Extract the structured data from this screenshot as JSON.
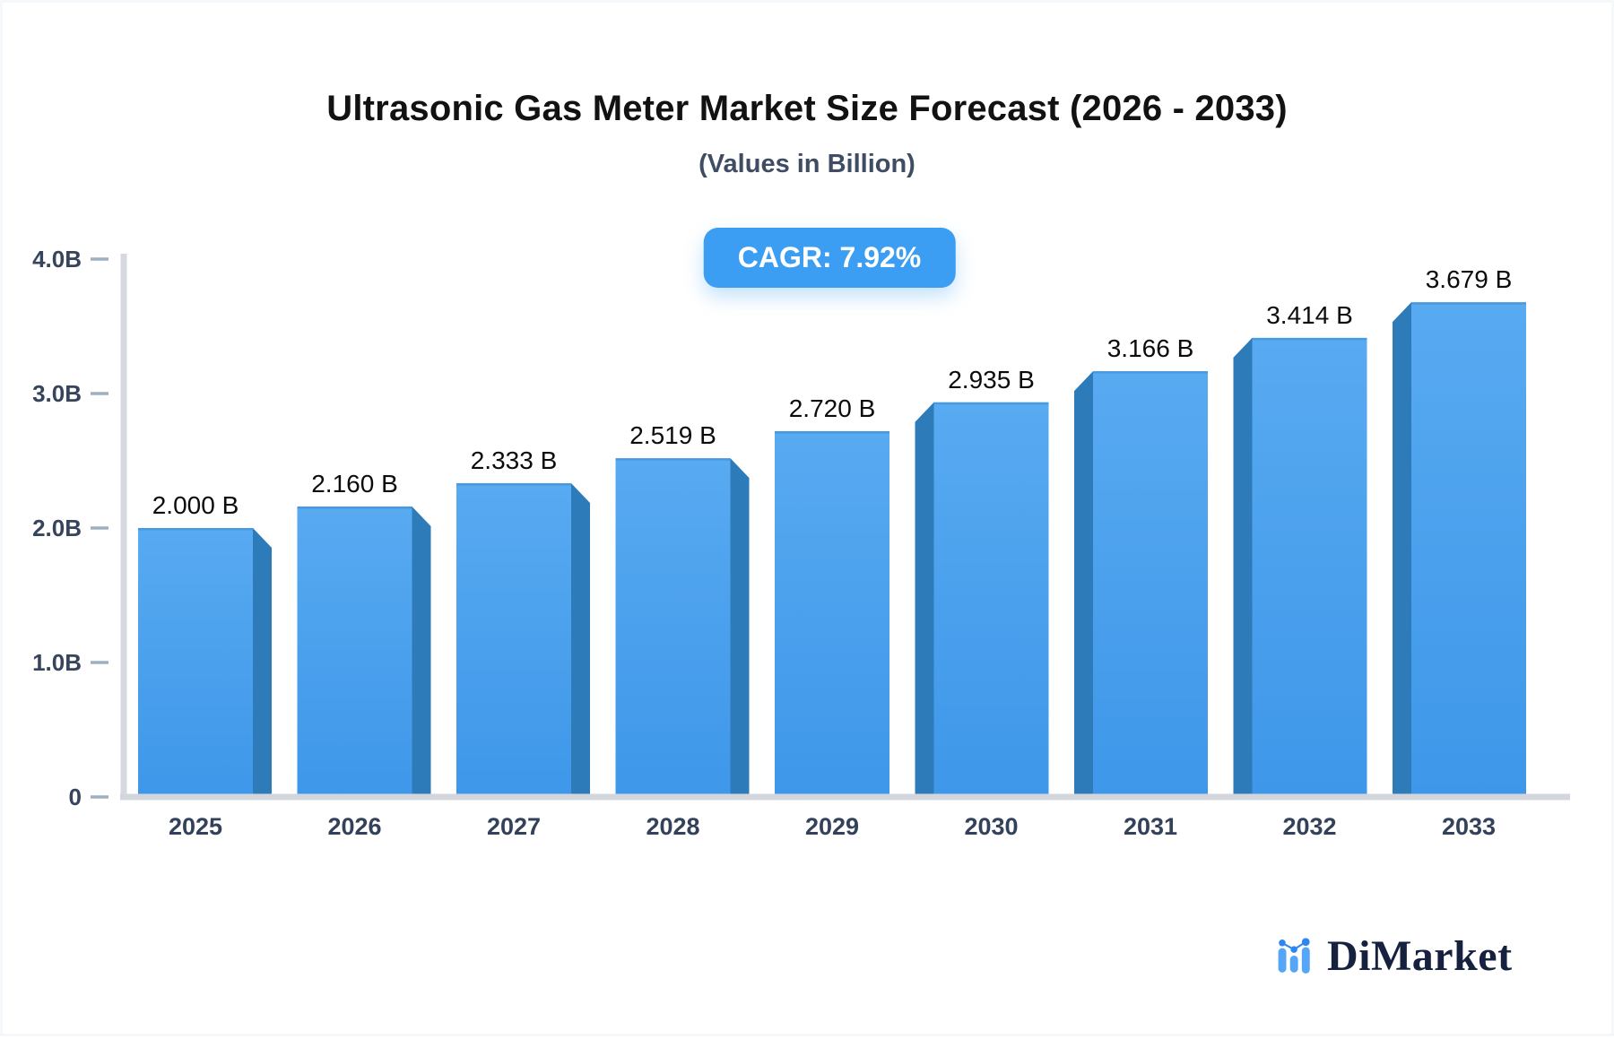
{
  "header": {
    "title": "Ultrasonic Gas Meter Market Size Forecast (2026 - 2033)",
    "subtitle": "(Values in Billion)",
    "cagr_badge": "CAGR: 7.92%"
  },
  "chart_data": {
    "type": "bar",
    "title": "Ultrasonic Gas Meter Market Size Forecast (2026 - 2033)",
    "subtitle": "(Values in Billion)",
    "annotation": "CAGR: 7.92%",
    "unit": "Billion",
    "categories": [
      "2025",
      "2026",
      "2027",
      "2028",
      "2029",
      "2030",
      "2031",
      "2032",
      "2033"
    ],
    "values": [
      2.0,
      2.16,
      2.333,
      2.519,
      2.72,
      2.935,
      3.166,
      3.414,
      3.679
    ],
    "value_labels": [
      "2.000 B",
      "2.160 B",
      "2.333 B",
      "2.519 B",
      "2.720 B",
      "2.935 B",
      "3.166 B",
      "3.414 B",
      "3.679 B"
    ],
    "ylim": [
      0,
      4.0
    ],
    "y_ticks": [
      {
        "value": 0,
        "label": "0"
      },
      {
        "value": 1.0,
        "label": "1.0B"
      },
      {
        "value": 2.0,
        "label": "2.0B"
      },
      {
        "value": 3.0,
        "label": "3.0B"
      },
      {
        "value": 4.0,
        "label": "4.0B"
      }
    ],
    "grid": false,
    "legend": false,
    "bar_effect": "3d-extruded-toward-center"
  },
  "colors": {
    "badge_bg": "#3b9ef2",
    "bar_front_top": "#58aaf1",
    "bar_front_bottom": "#3e97e9",
    "bar_top_rim": "#3a8ad6",
    "bar_side": "#2e7bba",
    "axis_line": "#d6dae0",
    "baseline": "#d3d7dd",
    "tick_dash": "#9db0c2",
    "tick_text": "#36455c",
    "year_text": "#33425a",
    "value_text": "#0c0c0c",
    "logo_bar_blue": "#55a6f7",
    "logo_dot_blue": "#2e87ef",
    "logo_text_navy": "#16213f"
  },
  "logo": {
    "text": "DiMarket"
  }
}
